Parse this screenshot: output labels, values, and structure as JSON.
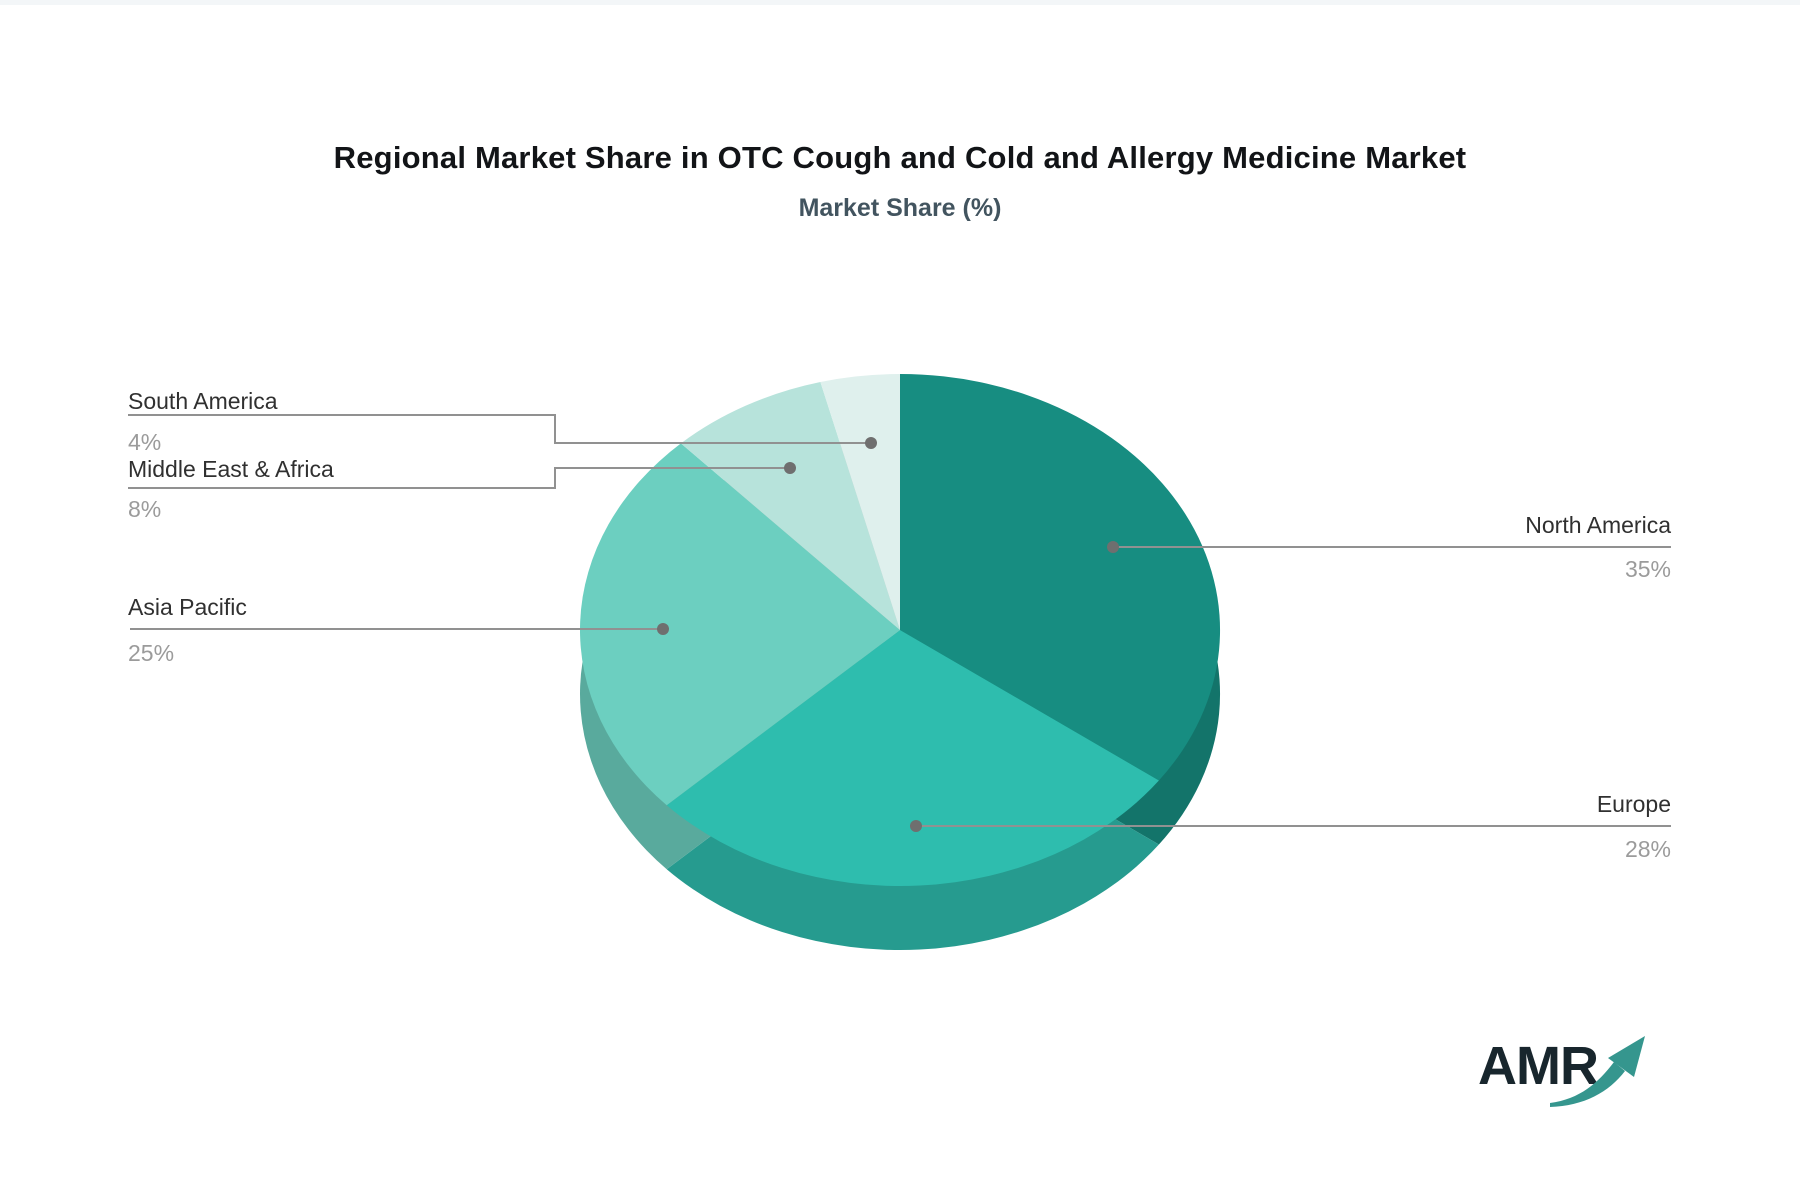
{
  "chart_data": {
    "type": "pie",
    "style": "3d",
    "title": "Regional Market Share in OTC Cough and Cold and Allergy Medicine Market",
    "subtitle": "Market Share (%)",
    "labels": [
      "North America",
      "Europe",
      "Asia Pacific",
      "Middle East & Africa",
      "South America"
    ],
    "values": [
      35,
      28,
      25,
      8,
      4
    ],
    "value_labels": [
      "35%",
      "28%",
      "25%",
      "8%",
      "4%"
    ],
    "unit": "%",
    "colors": [
      "#178d81",
      "#2ebdae",
      "#6ccfc0",
      "#b7e3db",
      "#dff0ed"
    ],
    "start_angle_deg": 0,
    "direction": "clockwise",
    "legend": "none",
    "callout_line_color": "#919191",
    "callout_dot_color": "#6f6f6f"
  },
  "logo": {
    "text": "AMR",
    "text_color": "#18262d",
    "arrow_color": "#35968e"
  }
}
